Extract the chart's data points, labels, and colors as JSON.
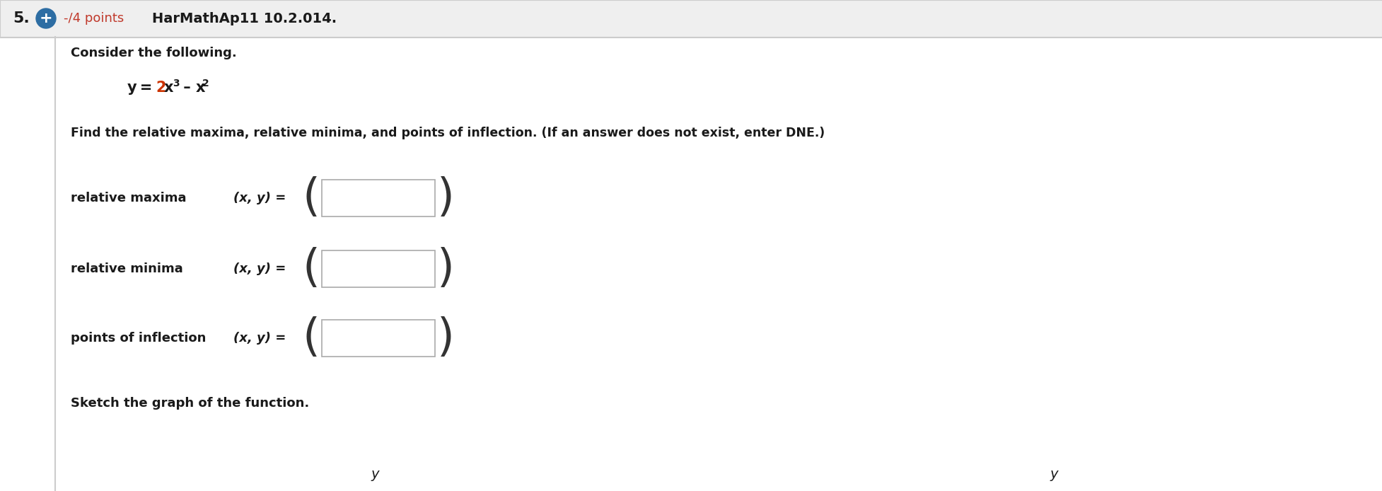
{
  "question_number": "5.",
  "points_label": "-/4 points",
  "problem_id": "HarMathAp11 10.2.014.",
  "consider_text": "Consider the following.",
  "eq_y_part": "y = ",
  "eq_red_2": "2",
  "eq_black_rest": "x",
  "eq_sup3": "3",
  "eq_black_minus": " – x",
  "eq_sup2": "2",
  "instruction": "Find the relative maxima, relative minima, and points of inflection. (If an answer does not exist, enter DNE.)",
  "row1_label": "relative maxima",
  "row2_label": "relative minima",
  "row3_label": "points of inflection",
  "xy_label": "(x, y) =",
  "sketch_label": "Sketch the graph of the function.",
  "y_label_left": "y",
  "y_label_right": "y",
  "bg_color": "#ffffff",
  "header_bg": "#efefef",
  "border_color": "#cccccc",
  "left_bar_color": "#cccccc",
  "text_color": "#1a1a1a",
  "header_text_color": "#1a1a1a",
  "points_color": "#c0392b",
  "icon_color": "#2d6da3",
  "equation_red": "#cc3300",
  "equation_black": "#1a1a1a",
  "box_border_color": "#aaaaaa",
  "paren_color": "#333333",
  "italic_xy_color": "#1a1a1a"
}
